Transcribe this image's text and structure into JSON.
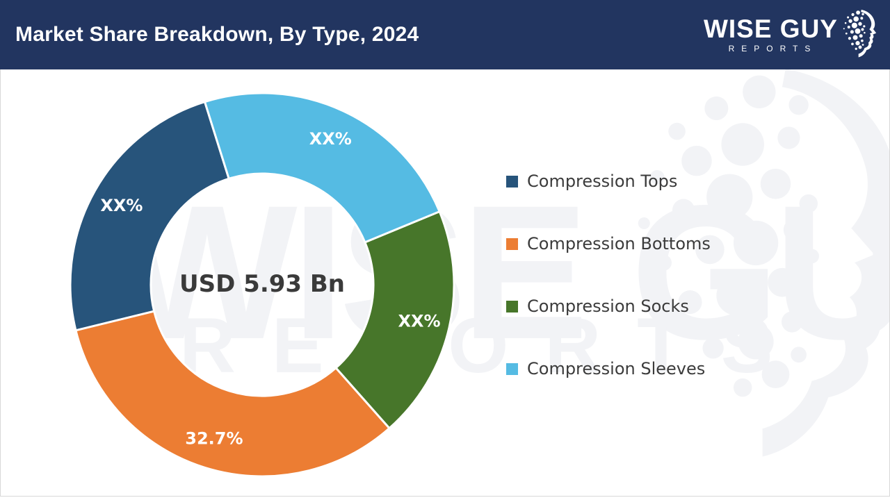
{
  "header": {
    "logo": {
      "line1": "WISE GUY",
      "line2": "REPORTS"
    }
  },
  "chart_data": {
    "type": "donut",
    "title": "Market Share Breakdown, By Type, 2024",
    "center_label": "USD 5.93 Bn",
    "legend_position": "right",
    "start_angle_deg": -17.4,
    "direction": "counterclockwise",
    "segments": [
      {
        "name": "Compression Tops",
        "label": "XX%",
        "value": 24.0,
        "color": "#27547B"
      },
      {
        "name": "Compression Bottoms",
        "label": "32.7%",
        "value": 32.7,
        "color": "#EC7D33"
      },
      {
        "name": "Compression Socks",
        "label": "XX%",
        "value": 19.7,
        "color": "#47762A"
      },
      {
        "name": "Compression Sleeves",
        "label": "XX%",
        "value": 23.6,
        "color": "#55BBE3"
      }
    ]
  },
  "watermark": {
    "line1": "WISE GUY",
    "line2": "REPORTS"
  },
  "colors": {
    "header_bg": "#223560",
    "segment_label_text": "#FFFFFF",
    "center_text": "#3A3A3A",
    "legend_text": "#3B3B3B",
    "watermark": "#F2F3F6"
  }
}
